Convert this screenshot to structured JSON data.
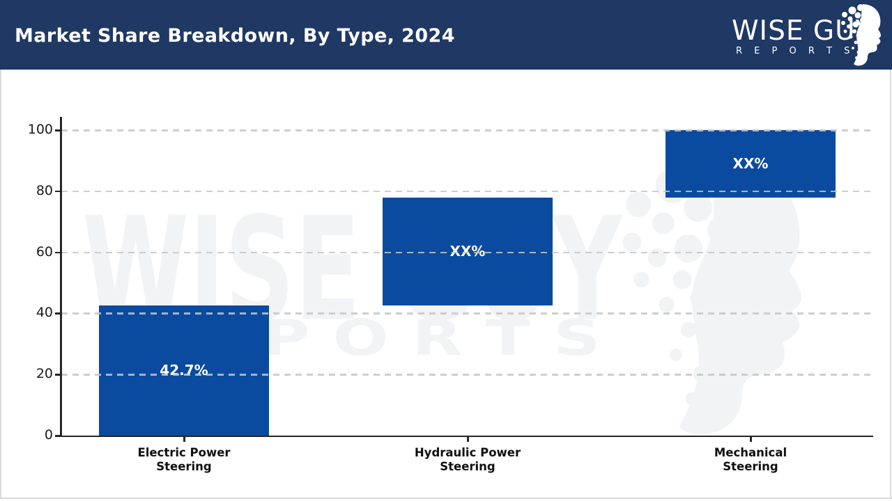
{
  "header": {
    "title": "Market Share Breakdown, By Type, 2024",
    "logo": {
      "wordmark": "WISE GUY",
      "subtext": "R E P O R T S"
    }
  },
  "watermark": {
    "wordmark": "WISE GUY",
    "subtext": "R E P O R T S"
  },
  "chart_data": {
    "type": "bar",
    "subtype": "waterfall",
    "title": "Market Share Breakdown, By Type, 2024",
    "categories": [
      [
        "Electric Power",
        "Steering"
      ],
      [
        "Hydraulic Power",
        "Steering"
      ],
      [
        "Mechanical",
        "Steering"
      ]
    ],
    "segments": [
      {
        "category": "Electric Power Steering",
        "start": 0,
        "end": 42.7,
        "label": "42.7%"
      },
      {
        "category": "Hydraulic Power Steering",
        "start": 42.7,
        "end": 78,
        "label": "XX%"
      },
      {
        "category": "Mechanical Steering",
        "start": 78,
        "end": 100,
        "label": "XX%"
      }
    ],
    "xlabel": "",
    "ylabel": "",
    "ylim": [
      0,
      100
    ],
    "yticks": [
      0,
      20,
      40,
      60,
      80,
      100
    ],
    "grid": "horizontal-dashed",
    "legend": "none",
    "bar_color": "#0B4B9F",
    "bar_label_color": "#FFFFFF"
  },
  "colors": {
    "header_bg": "#1F3864",
    "bar": "#0B4B9F",
    "gridline": "#C9C9C9",
    "axis": "#262626",
    "tick_text": "#1B1B1B",
    "watermark": "#F2F3F5",
    "border": "#D9D9D9"
  }
}
